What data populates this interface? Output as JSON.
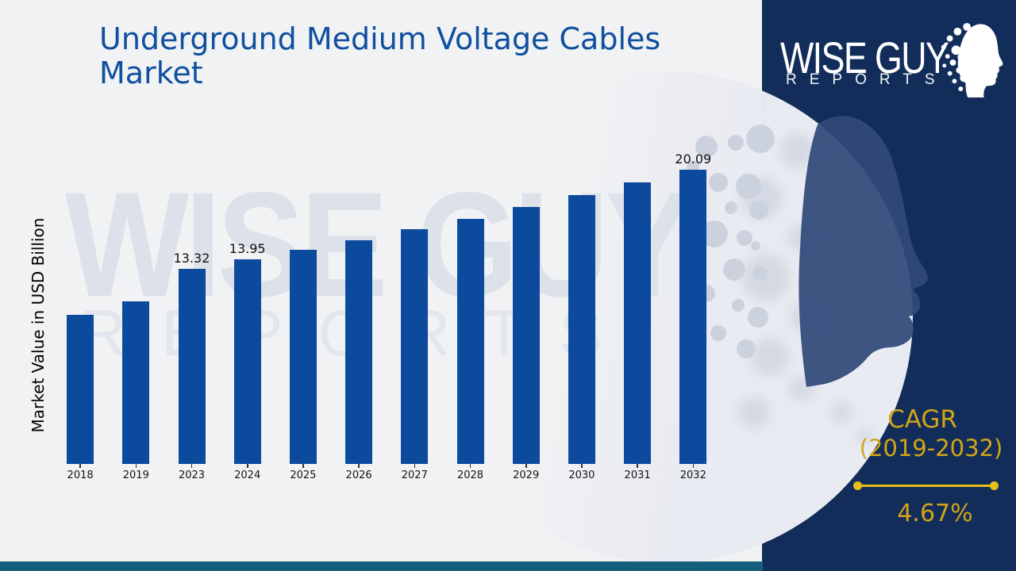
{
  "header": {
    "title": "Underground Medium Voltage Cables Market"
  },
  "brand_panel": {
    "logo": {
      "line1": "WISE GUY",
      "line2": "REPORTS"
    },
    "cagr": {
      "label": "CAGR",
      "range": "(2019-2032)",
      "value": "4.67%"
    }
  },
  "watermark": {
    "line1": "WISE GUY",
    "line2": "REPORTS"
  },
  "colors": {
    "page_bg": "#f1f2f3",
    "title": "#0f4fa0",
    "bar": "#0c4a9d",
    "panel": "#132d5b",
    "gold": "#d2a516",
    "gold_bright": "#e9bd1a",
    "footer": "#16607f",
    "circle": "#e9ebf2",
    "face": "#30497a",
    "watermark_text": "#dde1e9",
    "watermark_dot": "#ccd2dd"
  },
  "chart_data": {
    "type": "bar",
    "title": "Underground Medium Voltage Cables Market",
    "xlabel": "",
    "ylabel": "Market Value in USD Billion",
    "categories": [
      "2018",
      "2019",
      "2023",
      "2024",
      "2025",
      "2026",
      "2027",
      "2028",
      "2029",
      "2030",
      "2031",
      "2032"
    ],
    "values": [
      10.18,
      11.1,
      13.32,
      13.95,
      14.6,
      15.28,
      16.0,
      16.74,
      17.53,
      18.35,
      19.2,
      20.09
    ],
    "data_labels": [
      "",
      "",
      "13.32",
      "13.95",
      "",
      "",
      "",
      "",
      "",
      "",
      "",
      "20.09"
    ],
    "cagr_percent": 4.67,
    "bar_color": "#0c4a9d",
    "ylim": [
      0,
      21.7
    ],
    "grid": false,
    "legend": null
  }
}
